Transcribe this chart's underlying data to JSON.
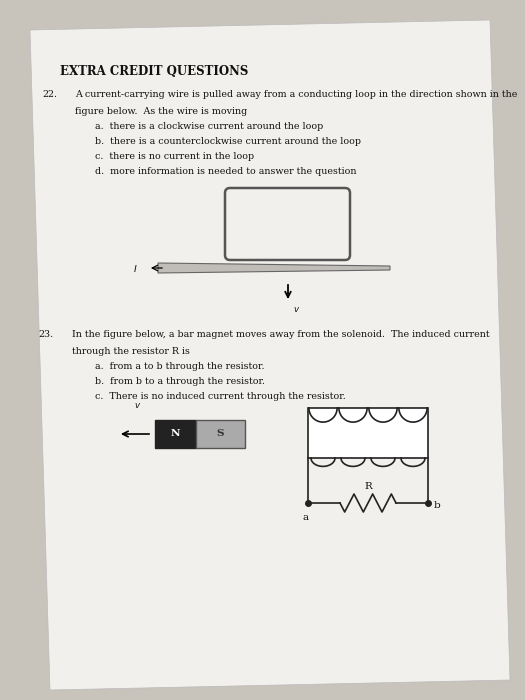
{
  "bg_color": "#c8c4bc",
  "paper_color": "#f2f0ec",
  "title": "EXTRA CREDIT QUESTIONS",
  "q22_number": "22.",
  "q22_line1": "A current-carrying wire is pulled away from a conducting loop in the direction shown in the",
  "q22_line2": "figure below.  As the wire is moving",
  "q22_options": [
    "a.  there is a clockwise current around the loop",
    "b.  there is a counterclockwise current around the loop",
    "c.  there is no current in the loop",
    "d.  more information is needed to answer the question"
  ],
  "q23_number": "23.",
  "q23_line1": "In the figure below, a bar magnet moves away from the solenoid.  The induced current",
  "q23_line2": "through the resistor R is",
  "q23_options": [
    "a.  from a to b through the resistor.",
    "b.  from b to a through the resistor.",
    "c.  There is no induced current through the resistor."
  ],
  "loop_color": "#555555",
  "wire_fill": "#c0bdb8",
  "wire_edge": "#666666",
  "magnet_N_fill": "#222222",
  "magnet_N_text": "#ffffff",
  "magnet_S_fill": "#aaaaaa",
  "magnet_S_text": "#333333",
  "circuit_color": "#222222"
}
